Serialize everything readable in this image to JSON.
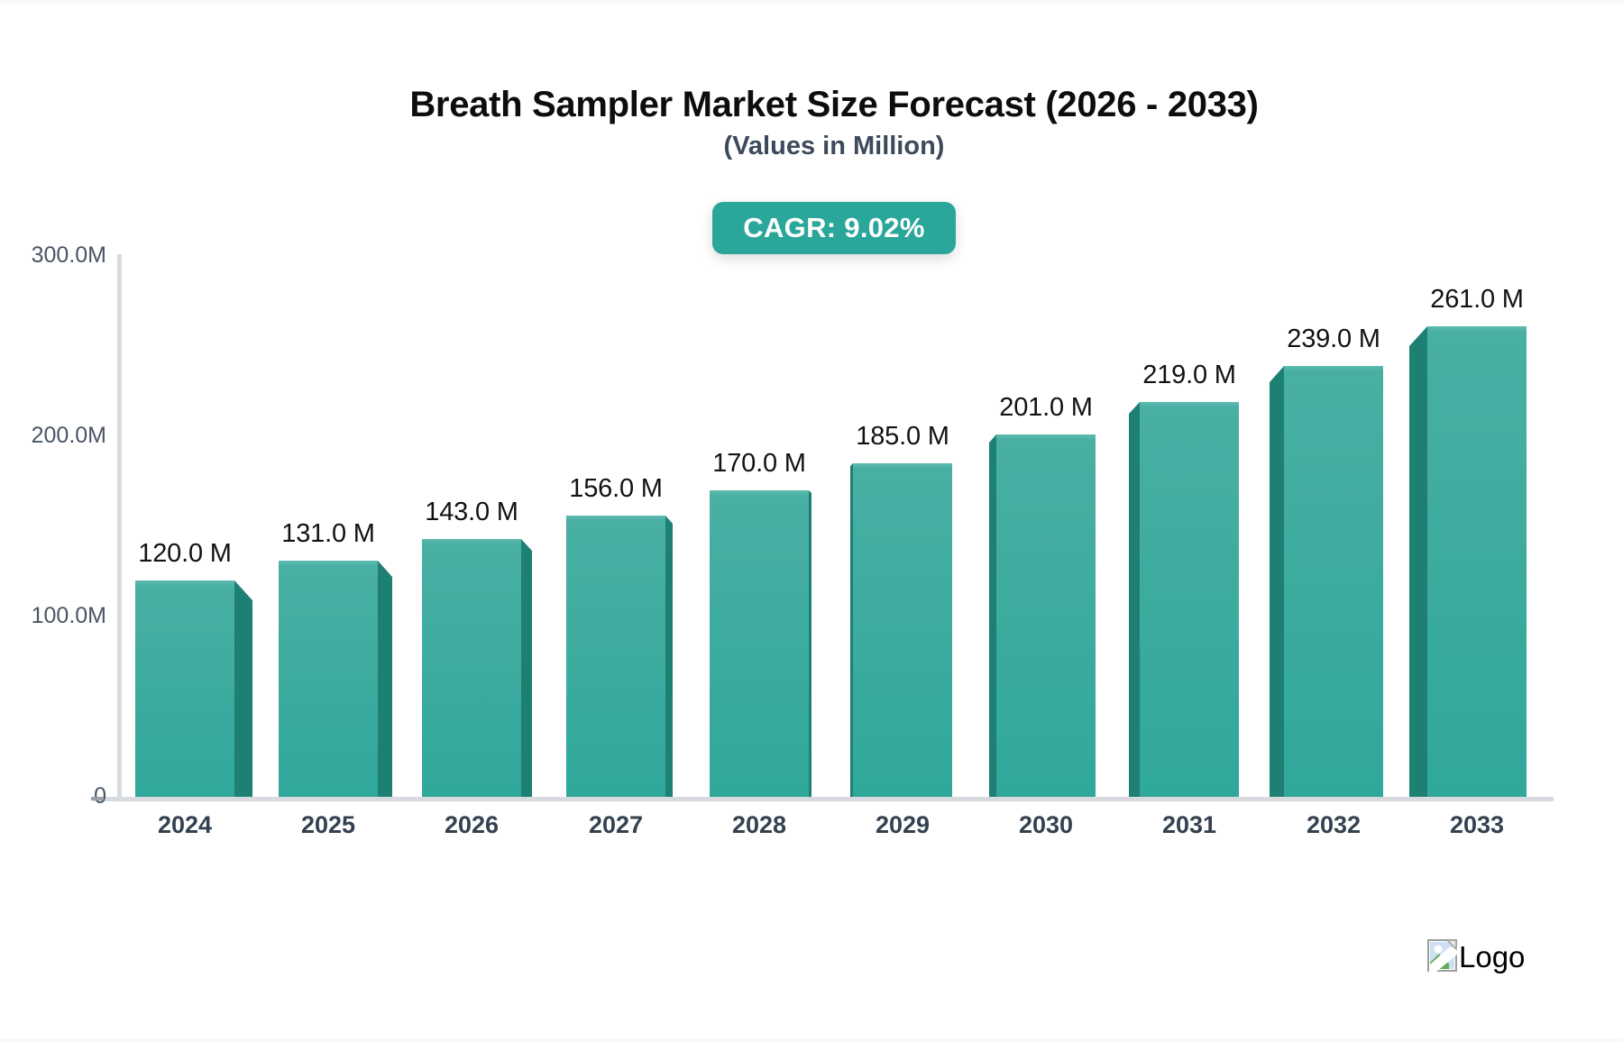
{
  "page": {
    "background": "#ffffff",
    "edge_strip_color": "#f7f8fa"
  },
  "header": {
    "title": "Breath Sampler Market Size Forecast (2026 - 2033)",
    "subtitle": "(Values in Million)"
  },
  "badge": {
    "label": "CAGR: 9.02%",
    "bg": "#2aa69a",
    "text_color": "#ffffff"
  },
  "footer": {
    "logo_alt": "Logo"
  },
  "chart_data": {
    "type": "bar",
    "title": "Breath Sampler Market Size Forecast (2026 - 2033)",
    "subtitle": "(Values in Million)",
    "categories": [
      "2024",
      "2025",
      "2026",
      "2027",
      "2028",
      "2029",
      "2030",
      "2031",
      "2032",
      "2033"
    ],
    "values": [
      120,
      131,
      143,
      156,
      170,
      185,
      201,
      219,
      239,
      261
    ],
    "value_labels": [
      "120.0 M",
      "131.0 M",
      "143.0 M",
      "156.0 M",
      "170.0 M",
      "185.0 M",
      "201.0 M",
      "219.0 M",
      "239.0 M",
      "261.0 M"
    ],
    "annotation": "CAGR: 9.02%",
    "xlabel": "",
    "ylabel": "",
    "ylim": [
      0,
      300
    ],
    "grid": false,
    "legend": false,
    "yticks": [
      {
        "value": 300,
        "label": "300.0M"
      },
      {
        "value": 200,
        "label": "200.0M"
      },
      {
        "value": 100,
        "label": "100.0M"
      },
      {
        "value": 0,
        "label": "0"
      }
    ],
    "bar_style": {
      "face_top_color": "#5ebbaf",
      "face_bottom_color": "#2fa89a",
      "side_color": "#1e7f73",
      "effect": "3d-center-perspective"
    }
  }
}
